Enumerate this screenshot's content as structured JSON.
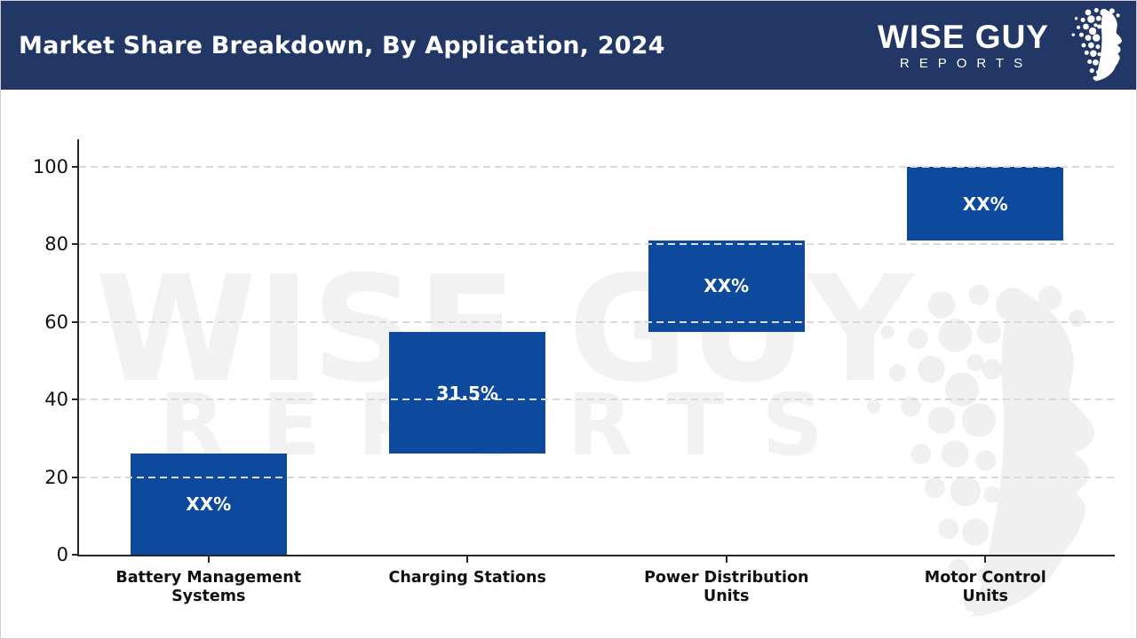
{
  "header": {
    "title": "Market Share Breakdown, By Application, 2024",
    "background_color": "#223765",
    "logo": {
      "word": "WISE GUY",
      "sub": "REPORTS",
      "head_icon": "dotted-head-profile-icon"
    }
  },
  "watermark": {
    "line1": "WISE GUY",
    "line2": "REPORTS",
    "head_icon": "dotted-head-profile-icon",
    "color": "#f0f0f0"
  },
  "chart_data": {
    "type": "bar",
    "subtype": "floating-waterfall",
    "title": "Market Share Breakdown, By Application, 2024",
    "categories": [
      "Battery Management Systems",
      "Charging Stations",
      "Power Distribution Units",
      "Motor Control Units"
    ],
    "category_lines": [
      [
        "Battery Management",
        "Systems"
      ],
      [
        "Charging Stations"
      ],
      [
        "Power Distribution",
        "Units"
      ],
      [
        "Motor Control",
        "Units"
      ]
    ],
    "segments": [
      {
        "category": "Battery Management Systems",
        "start": 0,
        "end": 26,
        "label": "XX%"
      },
      {
        "category": "Charging Stations",
        "start": 26,
        "end": 57.5,
        "label": "31.5%",
        "value": 31.5
      },
      {
        "category": "Power Distribution Units",
        "start": 57.5,
        "end": 81,
        "label": "XX%"
      },
      {
        "category": "Motor Control Units",
        "start": 81,
        "end": 100,
        "label": "XX%"
      }
    ],
    "xlabel": "",
    "ylabel": "",
    "ylim": [
      0,
      100
    ],
    "yticks": [
      0,
      20,
      40,
      60,
      80,
      100
    ],
    "grid": "horizontal-dashed",
    "legend": "none",
    "bar_color": "#0d4a9e",
    "bar_label_color": "#ffffff",
    "axis_color": "#262626",
    "gridline_color": "#d9d9d9"
  }
}
